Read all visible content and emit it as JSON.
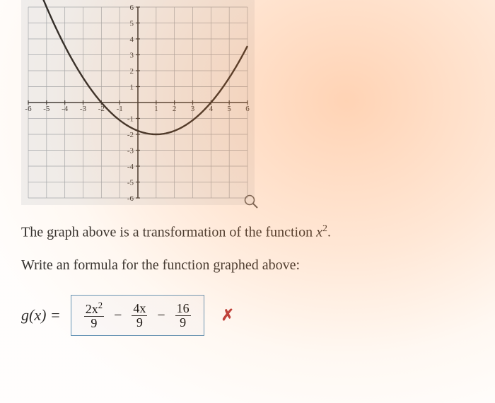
{
  "graph": {
    "type": "line",
    "xlim": [
      -6,
      6
    ],
    "ylim": [
      -6,
      6
    ],
    "xtick_step": 1,
    "ytick_step": 1,
    "grid_color": "#9aa3ab",
    "axis_color": "#2a2a2a",
    "curve_color": "#1a1a1a",
    "curve_width": 2.4,
    "background_color": "#eef0f2",
    "x_ticks": [
      -6,
      -5,
      -4,
      -3,
      -2,
      -1,
      1,
      2,
      3,
      4,
      5,
      6
    ],
    "y_ticks": [
      -6,
      -5,
      -4,
      -3,
      -2,
      -1,
      1,
      2,
      3,
      4,
      5,
      6
    ],
    "label_fontsize": 11,
    "vertex": [
      1,
      -2
    ],
    "a_coefficient": 0.2222,
    "curve_points": [
      [
        -6,
        8.89
      ],
      [
        -5,
        6.0
      ],
      [
        -4,
        3.56
      ],
      [
        -3,
        1.56
      ],
      [
        -2,
        0.0
      ],
      [
        -1,
        -1.11
      ],
      [
        0,
        -1.78
      ],
      [
        1,
        -2.0
      ],
      [
        2,
        -1.78
      ],
      [
        3,
        -1.11
      ],
      [
        4,
        0.0
      ],
      [
        5,
        1.56
      ],
      [
        6,
        3.56
      ]
    ],
    "magnifier_icon": "search-icon"
  },
  "text": {
    "line1_a": "The graph above is a transformation of the function ",
    "line1_fn": "x",
    "line1_exp": "2",
    "line1_b": ".",
    "line2": "Write an formula for the function graphed above:"
  },
  "answer": {
    "lhs": "g(x) =",
    "term1_num": "2x",
    "term1_exp": "2",
    "term1_den": "9",
    "op1": "−",
    "term2_num": "4x",
    "term2_den": "9",
    "op2": "−",
    "term3_num": "16",
    "term3_den": "9",
    "mark": "✗",
    "box_border": "#5b8fb5"
  }
}
